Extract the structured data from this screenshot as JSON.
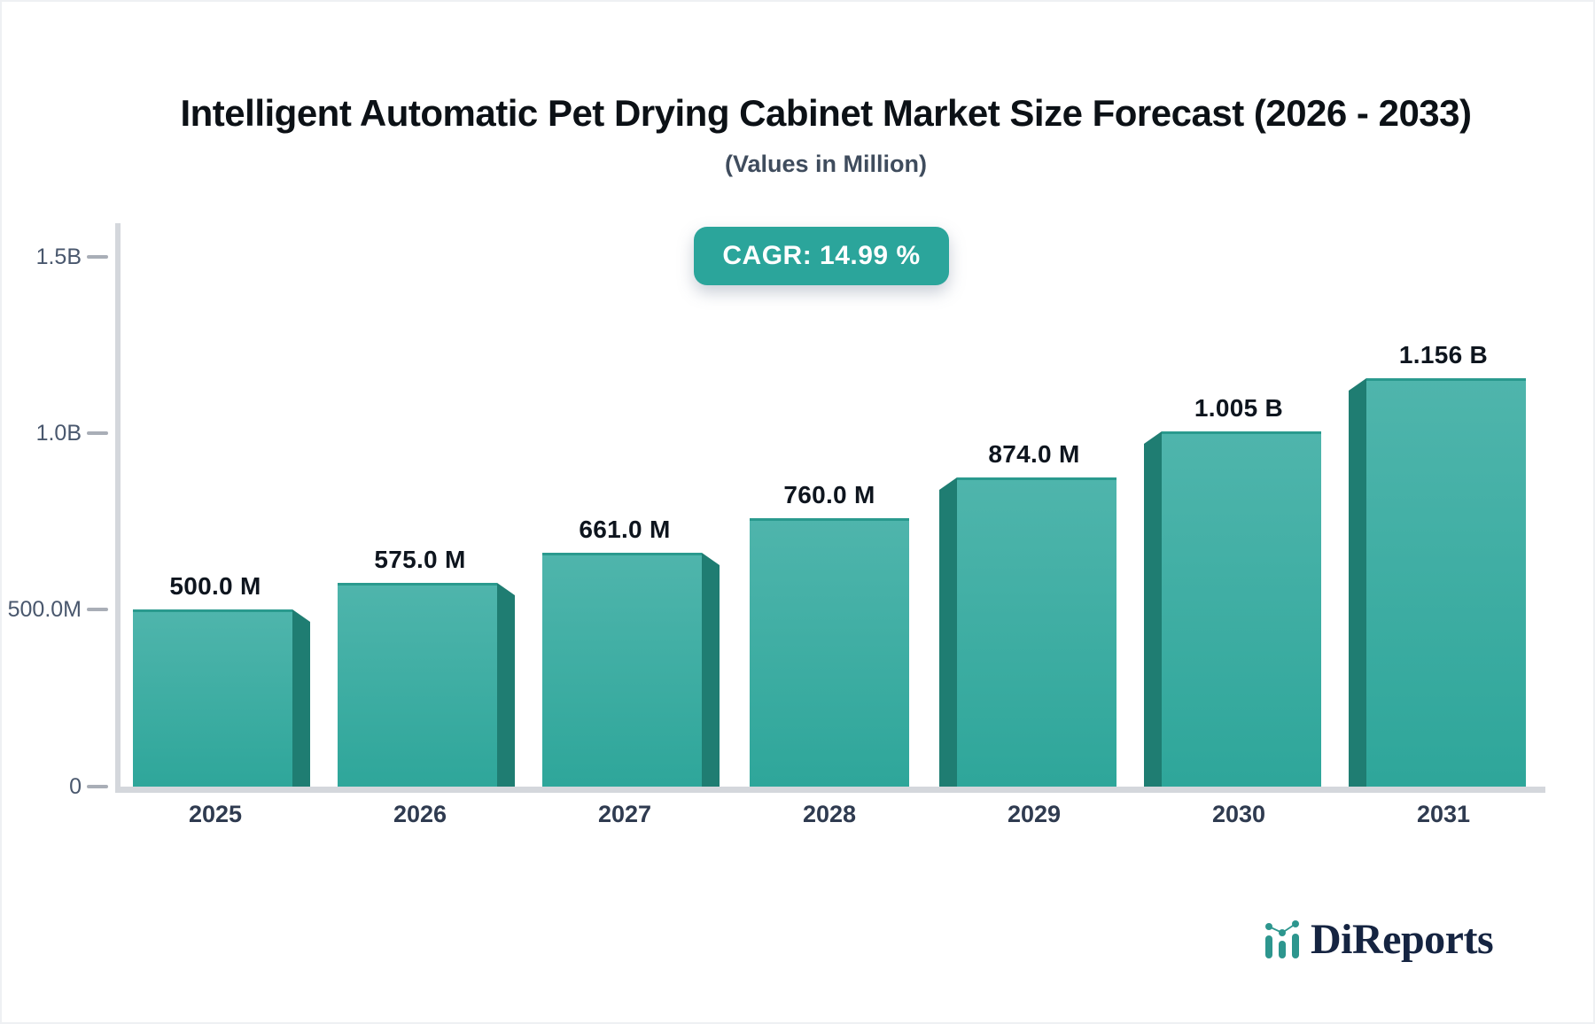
{
  "header": {
    "title": "Intelligent Automatic Pet Drying Cabinet Market Size Forecast (2026 - 2033)",
    "subtitle": "(Values in Million)",
    "cagr_badge": "CAGR: 14.99 %"
  },
  "chart_data": {
    "type": "bar",
    "title": "Intelligent Automatic Pet Drying Cabinet Market Size Forecast (2026 - 2033)",
    "subtitle": "(Values in Million)",
    "unit": "USD Million",
    "cagr_percent": 14.99,
    "categories": [
      "2025",
      "2026",
      "2027",
      "2028",
      "2029",
      "2030",
      "2031"
    ],
    "values": [
      500,
      575,
      661,
      760,
      874,
      1005,
      1156
    ],
    "value_labels": [
      "500.0 M",
      "575.0 M",
      "661.0 M",
      "760.0 M",
      "874.0 M",
      "1.005 B",
      "1.156 B"
    ],
    "series": [
      {
        "name": "Market Size",
        "values": [
          500,
          575,
          661,
          760,
          874,
          1005,
          1156
        ]
      }
    ],
    "y_axis": {
      "tick_labels": [
        "1.5B",
        "1.0B",
        "500.0M",
        "0"
      ],
      "tick_values_millions": [
        1500,
        1000,
        500,
        0
      ],
      "min": 0,
      "max": 1500
    },
    "grid": false,
    "legend": false,
    "bar_style": "3d-extruded"
  },
  "colors": {
    "badge_bg": "#2ba59b",
    "bar_face_top": "#4fb5ac",
    "bar_face_bottom": "#2ea69a",
    "bar_top_edge": "#2a9a8e",
    "bar_side": "#1f7d72",
    "axis_line": "#d4d7dc",
    "tick_dash": "#a9aeb7",
    "logo_teal": "#2d968e",
    "logo_navy": "#152441"
  },
  "branding": {
    "logo_text": "DiReports",
    "logo_icon": "mini-bar-chart-icon"
  }
}
